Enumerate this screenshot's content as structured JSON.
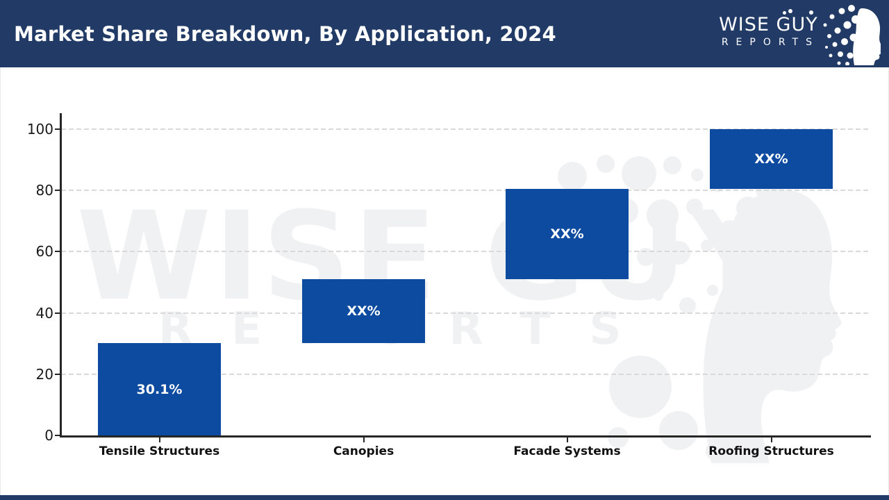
{
  "header": {
    "title": "Market Share Breakdown, By Application, 2024",
    "logo": {
      "line1": "WISE GUY",
      "line2": "REPORTS"
    }
  },
  "watermark": {
    "line1": "WISE GUY",
    "line2": "REPORTS"
  },
  "colors": {
    "header_bg": "#213b66",
    "bar": "#0c4ba0",
    "grid": "#d9d9d9",
    "axis": "#262626",
    "watermark": "#f0f1f3",
    "bar_label": "#ffffff"
  },
  "chart_data": {
    "type": "bar",
    "subtype": "waterfall",
    "title": "Market Share Breakdown, By Application, 2024",
    "categories": [
      "Tensile Structures",
      "Canopies",
      "Facade Systems",
      "Roofing Structures"
    ],
    "segments": [
      {
        "category": "Tensile Structures",
        "start": 0,
        "end": 30.1,
        "label": "30.1%"
      },
      {
        "category": "Canopies",
        "start": 30.1,
        "end": 51.0,
        "label": "XX%"
      },
      {
        "category": "Facade Systems",
        "start": 51.0,
        "end": 80.5,
        "label": "XX%"
      },
      {
        "category": "Roofing Structures",
        "start": 80.5,
        "end": 100,
        "label": "XX%"
      }
    ],
    "yticks": [
      0,
      20,
      40,
      60,
      80,
      100
    ],
    "ylim": [
      0,
      105
    ],
    "xlabel": "",
    "ylabel": "",
    "grid": "horizontal-dashed",
    "legend": "none",
    "bar_color": "#0c4ba0",
    "values_note": "all values masked as XX% except first segment 30.1%"
  }
}
